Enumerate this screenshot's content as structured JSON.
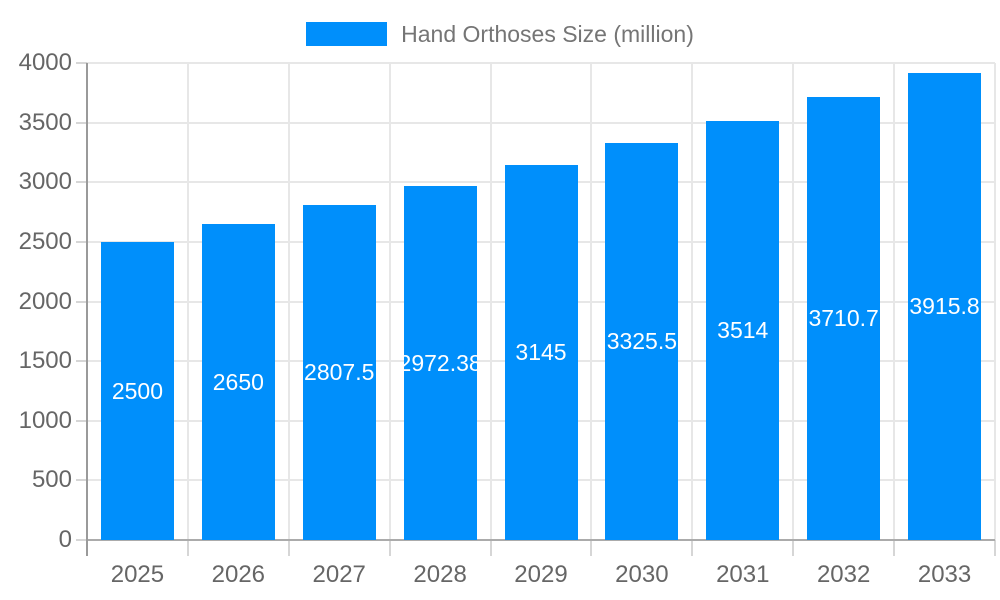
{
  "chart_data": {
    "type": "bar",
    "title": "Hand Orthoses Size (million)",
    "legend": "Hand Orthoses Size (million)",
    "legend_position": "top",
    "categories": [
      "2025",
      "2026",
      "2027",
      "2028",
      "2029",
      "2030",
      "2031",
      "2032",
      "2033"
    ],
    "series": [
      {
        "name": "Hand Orthoses Size (million)",
        "values": [
          2500,
          2650,
          2807.5,
          2972.38,
          3145,
          3325.5,
          3514,
          3710.7,
          3915.8
        ]
      }
    ],
    "data_labels": [
      "2500",
      "2650",
      "2807.5",
      "2972.38",
      "3145",
      "3325.5",
      "3514",
      "3710.7",
      "3915.8"
    ],
    "xlabel": "",
    "ylabel": "",
    "ylim": [
      0,
      4000
    ],
    "y_ticks": [
      0,
      500,
      1000,
      1500,
      2000,
      2500,
      3000,
      3500,
      4000
    ],
    "grid": true,
    "colors": {
      "bar": "#008FFB",
      "bar_label": "#FFFFFF",
      "axis_text": "#666666",
      "legend_text": "#757575",
      "gridline": "#E7E7E7",
      "y_axis_line": "#9A9A9A",
      "x_axis_line": "#ABABAB",
      "tick": "#D6D6D6"
    }
  }
}
